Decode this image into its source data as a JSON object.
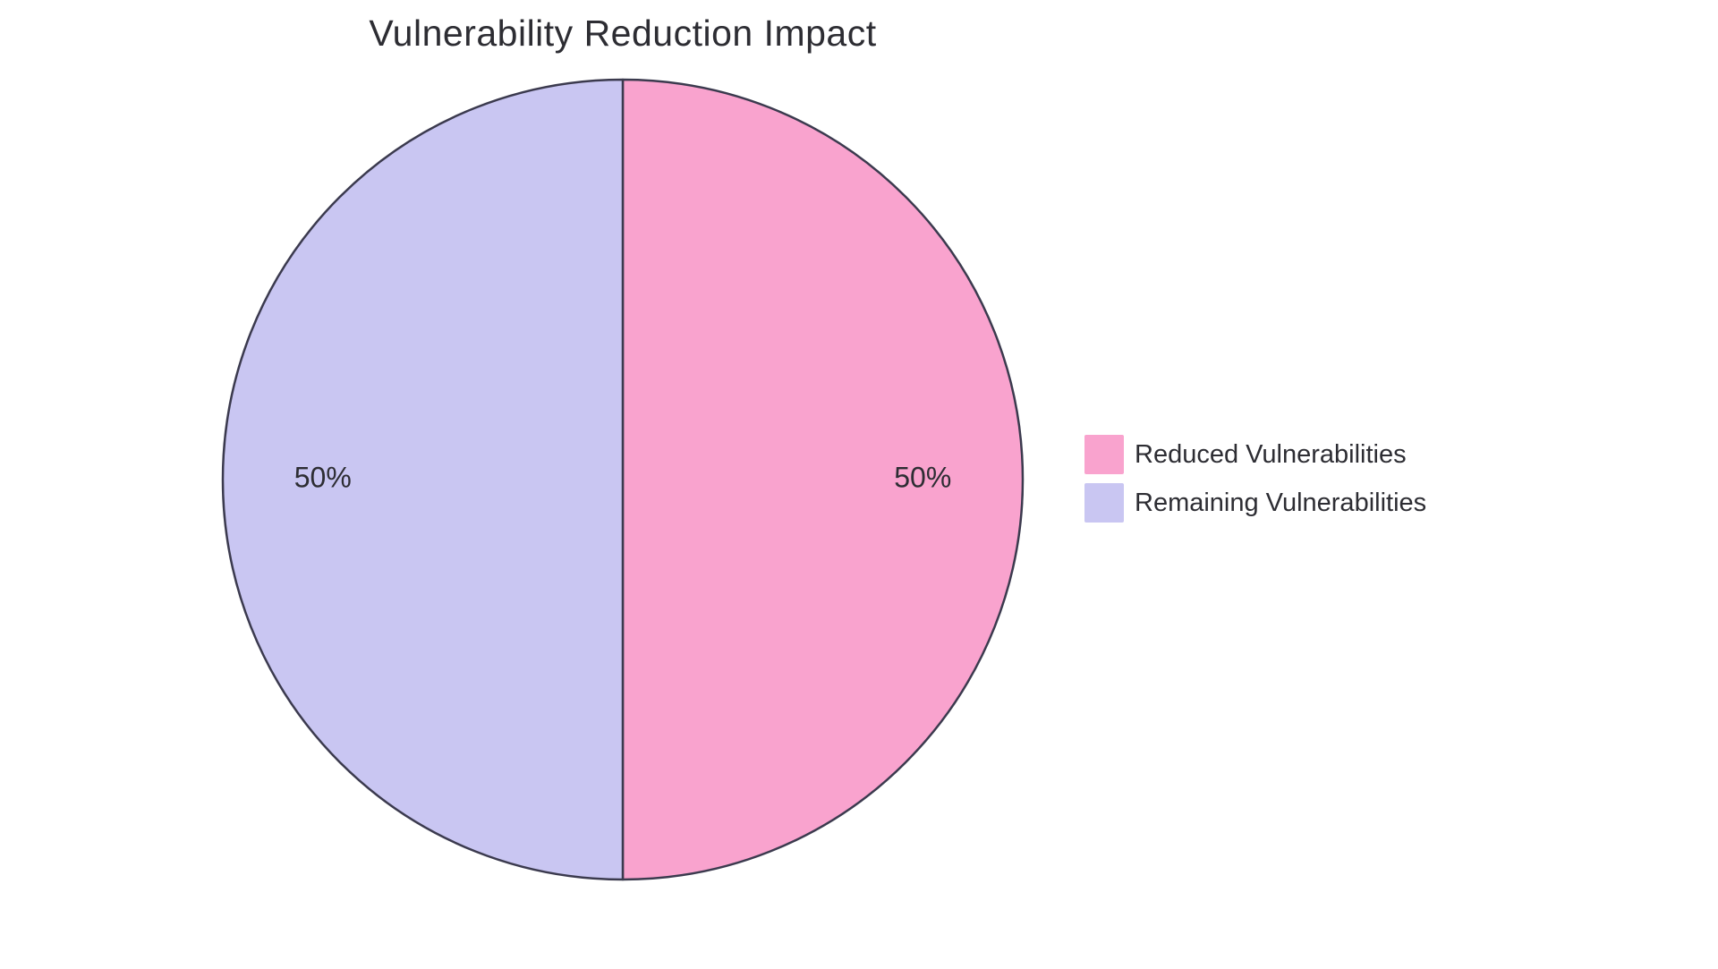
{
  "title": "Vulnerability Reduction Impact",
  "colors": {
    "background": "#FFFFFF",
    "stroke": "#3B3A4E",
    "text": "#2D2D33"
  },
  "chart_data": {
    "type": "pie",
    "title": "Vulnerability Reduction Impact",
    "legend_position": "right",
    "start_angle_deg": 0,
    "direction": "clockwise",
    "stroke_color": "#3B3A4E",
    "series": [
      {
        "name": "Reduced Vulnerabilities",
        "value": 50,
        "percent_label": "50%",
        "color": "#F9A3CE"
      },
      {
        "name": "Remaining Vulnerabilities",
        "value": 50,
        "percent_label": "50%",
        "color": "#C9C6F2"
      }
    ]
  }
}
